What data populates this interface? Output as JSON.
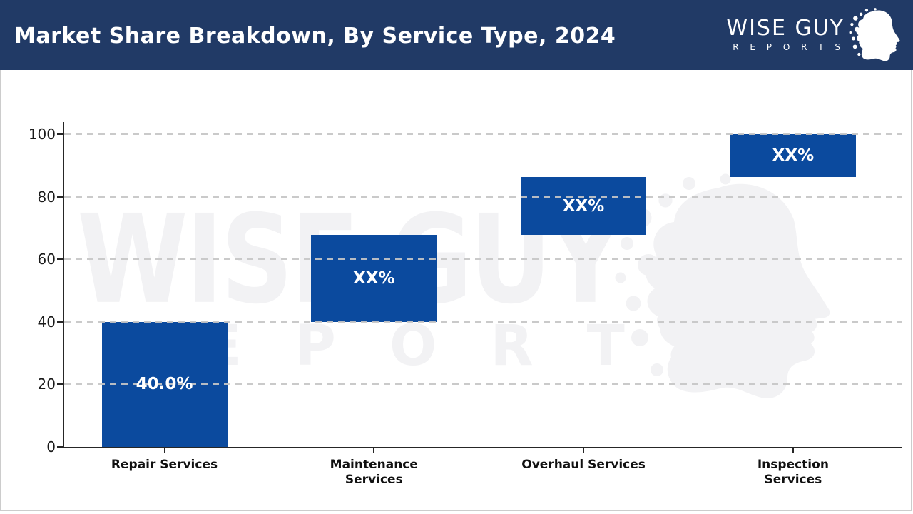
{
  "header": {
    "title": "Market Share Breakdown, By Service Type, 2024",
    "logo": {
      "line1": "WISE GUY",
      "line2": "R E P O R T S"
    }
  },
  "watermark": {
    "line1": "WISE GUY",
    "line2": "R E P O R T S"
  },
  "chart_data": {
    "type": "bar",
    "subtype": "waterfall",
    "title": "Market Share Breakdown, By Service Type, 2024",
    "categories": [
      "Repair Services",
      "Maintenance Services",
      "Overhaul Services",
      "Inspection Services"
    ],
    "category_lines": [
      [
        "Repair Services"
      ],
      [
        "Maintenance",
        "Services"
      ],
      [
        "Overhaul Services"
      ],
      [
        "Inspection",
        "Services"
      ]
    ],
    "segments": [
      {
        "category": "Repair Services",
        "start": 0,
        "end": 40,
        "label": "40.0%"
      },
      {
        "category": "Maintenance Services",
        "start": 40,
        "end": 67.7,
        "label": "XX%"
      },
      {
        "category": "Overhaul Services",
        "start": 67.7,
        "end": 86.4,
        "label": "XX%"
      },
      {
        "category": "Inspection Services",
        "start": 86.4,
        "end": 100,
        "label": "XX%"
      }
    ],
    "xlabel": "",
    "ylabel": "",
    "ylim": [
      0,
      100
    ],
    "yticks": [
      0,
      20,
      40,
      60,
      80,
      100
    ],
    "grid": "horizontal-dashed",
    "legend": "none",
    "bar_color": "#0b4a9e",
    "bar_label_color": "#ffffff",
    "header_color": "#213a66"
  }
}
